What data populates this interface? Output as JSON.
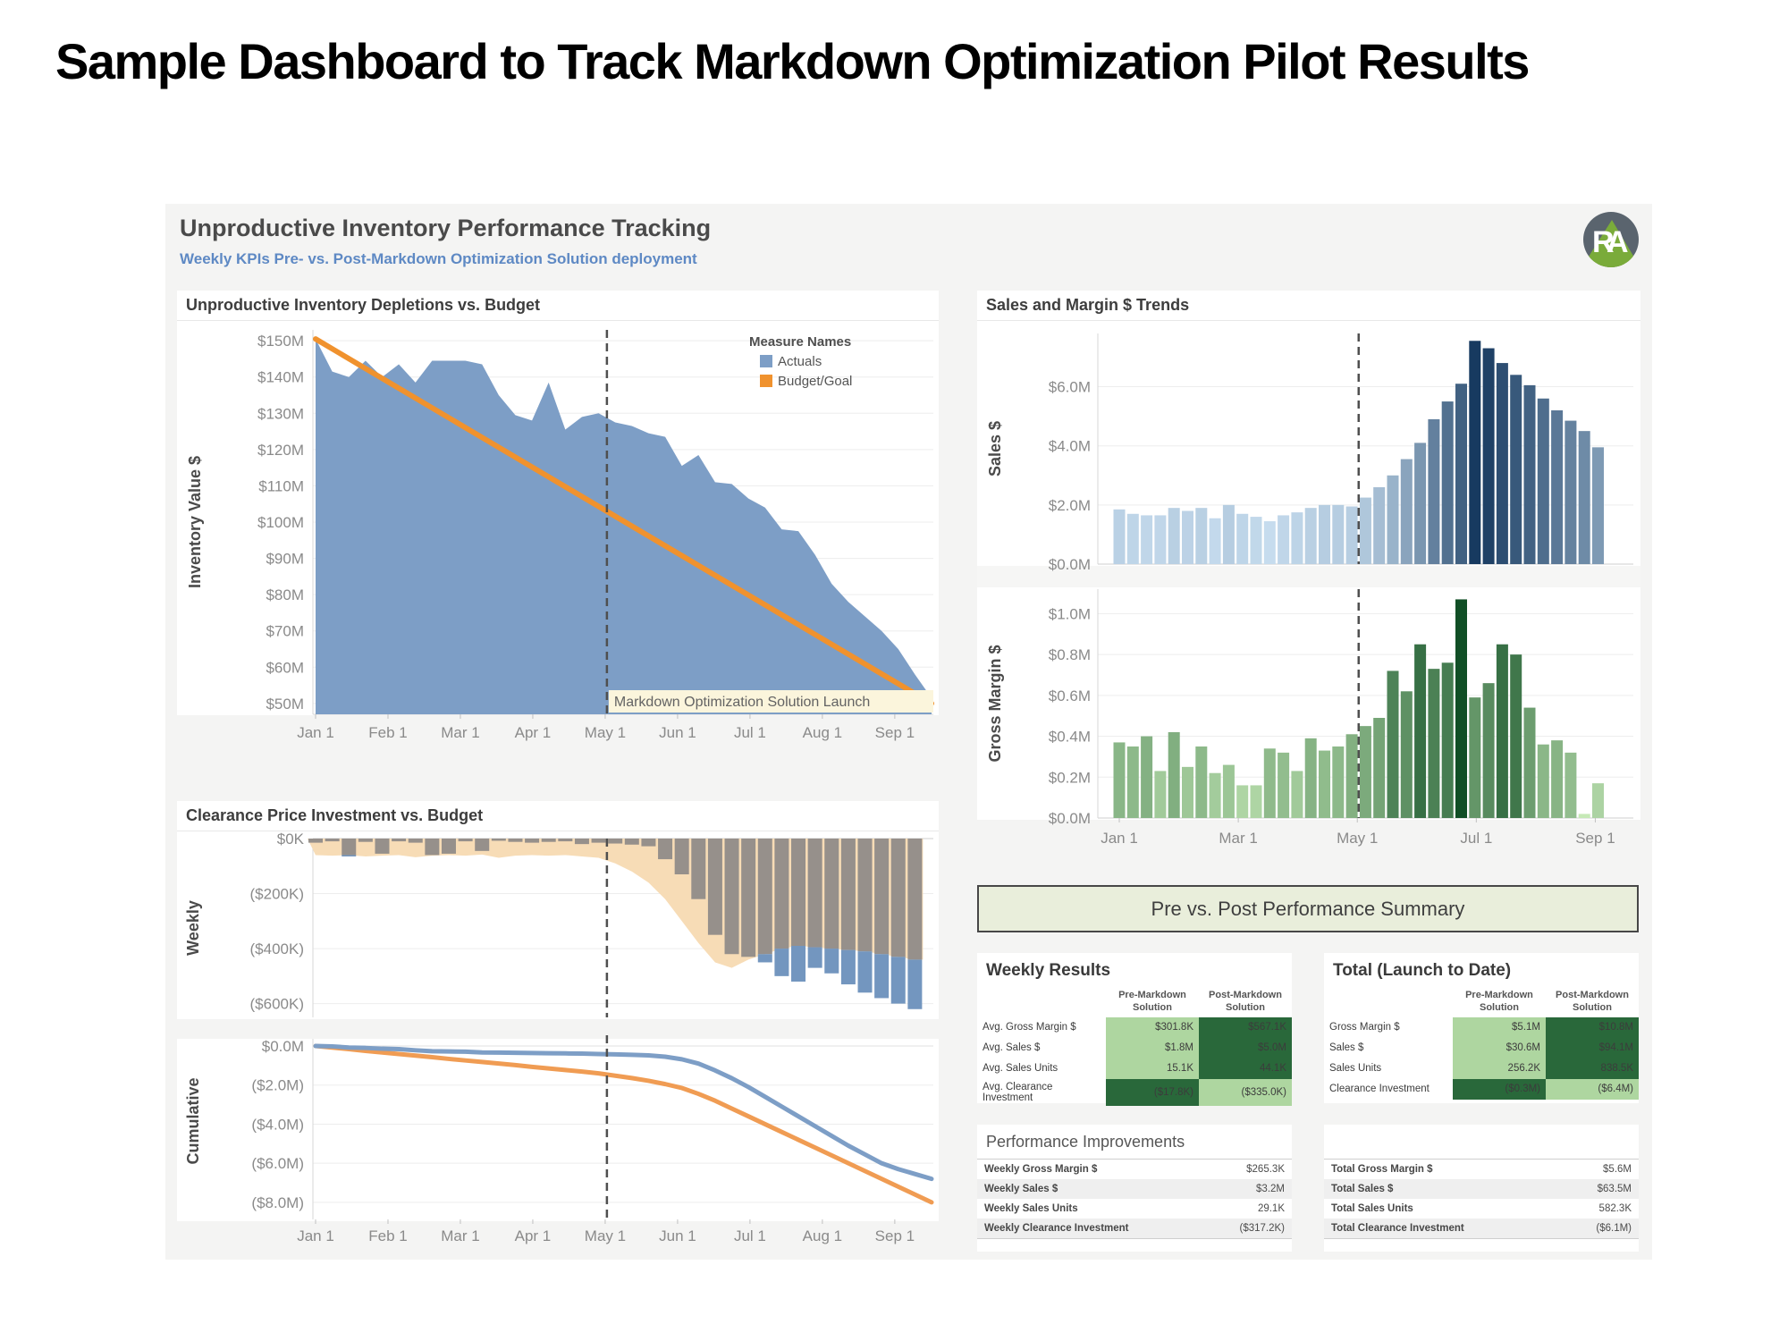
{
  "page": {
    "title": "Sample Dashboard to Track Markdown Optimization Pilot Results"
  },
  "dashboard": {
    "title": "Unproductive Inventory Performance Tracking",
    "subtitle": "Weekly KPIs Pre- vs. Post-Markdown Optimization Solution deployment",
    "logo_text": "RA"
  },
  "panels": {
    "inventory_title": "Unproductive Inventory Depletions vs. Budget",
    "clearance_title": "Clearance Price Investment vs. Budget",
    "trends_title": "Sales and Margin $ Trends"
  },
  "colors": {
    "actuals_blue": "#7d9ec6",
    "budget_orange": "#f0922e",
    "dashed_gray": "#4f4f4f",
    "sales_light": "#c7ddef",
    "sales_dark": "#16395f",
    "margin_light": "#c9ecba",
    "margin_dark": "#0c4b22",
    "budget_tan": "#f7dcb6",
    "bar_gray": "#96908b",
    "over_budget_blue": "#7396bf",
    "cell_light_green": "#aed6a0",
    "cell_dark_green": "#29683a",
    "summary_header_bg": "#e9eedb",
    "subtitle_blue": "#5e89c4",
    "launch_label_bg": "#fbf5dc",
    "logo_gray": "#5a646e",
    "logo_green": "#7aab3a"
  },
  "chart_data": [
    {
      "id": "inventory",
      "type": "area",
      "title": "Unproductive Inventory Depletions vs. Budget",
      "ylabel": "Inventory Value $",
      "ylim": [
        47,
        153
      ],
      "yticks": [
        {
          "v": 150,
          "label": "$150M"
        },
        {
          "v": 140,
          "label": "$140M"
        },
        {
          "v": 130,
          "label": "$130M"
        },
        {
          "v": 120,
          "label": "$120M"
        },
        {
          "v": 110,
          "label": "$110M"
        },
        {
          "v": 100,
          "label": "$100M"
        },
        {
          "v": 90,
          "label": "$90M"
        },
        {
          "v": 80,
          "label": "$80M"
        },
        {
          "v": 70,
          "label": "$70M"
        },
        {
          "v": 60,
          "label": "$60M"
        },
        {
          "v": 50,
          "label": "$50M"
        }
      ],
      "x_months": [
        "Jan 1",
        "Feb 1",
        "Mar 1",
        "Apr 1",
        "May 1",
        "Jun 1",
        "Jul 1",
        "Aug 1",
        "Sep 1"
      ],
      "weeks_per_month": 4.349,
      "legend_title": "Measure Names",
      "legend": [
        {
          "label": "Actuals",
          "color": "#7d9ec6"
        },
        {
          "label": "Budget/Goal",
          "color": "#f0922e"
        }
      ],
      "launch_week": 17.5,
      "launch_label": "Markdown Optimization Solution Launch",
      "series": [
        {
          "name": "Actuals",
          "color": "#7d9ec6",
          "values": [
            150.5,
            141.5,
            140,
            144.5,
            140,
            143.5,
            138.5,
            144.5,
            144.5,
            144.5,
            143.5,
            135,
            129.5,
            128,
            138.5,
            125.5,
            129,
            130,
            127.5,
            126.5,
            124.5,
            123.5,
            115.5,
            118.5,
            111,
            110.5,
            106.5,
            104,
            98,
            97.5,
            91,
            83,
            78,
            74,
            70,
            65,
            58,
            51.5
          ]
        },
        {
          "name": "Budget/Goal",
          "color": "#f0922e",
          "endpoints": [
            150.5,
            50
          ]
        }
      ]
    },
    {
      "id": "sales",
      "type": "bar",
      "ylabel": "Sales $",
      "ylim": [
        0,
        7.8
      ],
      "yticks": [
        {
          "v": 0,
          "label": "$0.0M"
        },
        {
          "v": 2,
          "label": "$2.0M"
        },
        {
          "v": 4,
          "label": "$4.0M"
        },
        {
          "v": 6,
          "label": "$6.0M"
        }
      ],
      "color_scale": [
        "#c7ddef",
        "#16395f"
      ],
      "color_domain": [
        1.4,
        7.6
      ],
      "values": [
        1.85,
        1.7,
        1.65,
        1.65,
        1.9,
        1.8,
        1.9,
        1.55,
        2.0,
        1.7,
        1.6,
        1.45,
        1.65,
        1.75,
        1.9,
        2.0,
        2.0,
        1.95,
        2.25,
        2.6,
        3.0,
        3.55,
        4.1,
        4.9,
        5.5,
        6.1,
        7.55,
        7.3,
        6.8,
        6.4,
        6.05,
        5.6,
        5.2,
        4.85,
        4.5,
        3.95
      ]
    },
    {
      "id": "margin",
      "type": "bar",
      "ylabel": "Gross Margin $",
      "ylim": [
        0,
        1.12
      ],
      "yticks": [
        {
          "v": 0,
          "label": "$0.0M"
        },
        {
          "v": 0.2,
          "label": "$0.2M"
        },
        {
          "v": 0.4,
          "label": "$0.4M"
        },
        {
          "v": 0.6,
          "label": "$0.6M"
        },
        {
          "v": 0.8,
          "label": "$0.8M"
        },
        {
          "v": 1.0,
          "label": "$1.0M"
        }
      ],
      "color_scale": [
        "#c9ecba",
        "#0c4b22"
      ],
      "color_domain": [
        0,
        1.1
      ],
      "values": [
        0.37,
        0.35,
        0.4,
        0.23,
        0.42,
        0.25,
        0.35,
        0.22,
        0.26,
        0.16,
        0.16,
        0.34,
        0.32,
        0.23,
        0.39,
        0.33,
        0.35,
        0.41,
        0.45,
        0.49,
        0.72,
        0.62,
        0.85,
        0.73,
        0.76,
        1.07,
        0.59,
        0.66,
        0.85,
        0.8,
        0.54,
        0.36,
        0.38,
        0.32,
        0.02,
        0.17
      ],
      "x_ticks": [
        {
          "label": "Jan 1",
          "week": 0
        },
        {
          "label": "Mar 1",
          "week": 8.7
        },
        {
          "label": "May 1",
          "week": 17.4
        },
        {
          "label": "Jul 1",
          "week": 26.1
        },
        {
          "label": "Sep 1",
          "week": 34.8
        }
      ],
      "launch_week": 17.5
    },
    {
      "id": "clearance_weekly",
      "type": "bar+area",
      "ylabel": "Weekly",
      "ylim": [
        -650,
        0
      ],
      "yticks": [
        {
          "v": 0,
          "label": "$0K"
        },
        {
          "v": -200,
          "label": "($200K)"
        },
        {
          "v": -400,
          "label": "($400K)"
        },
        {
          "v": -600,
          "label": "($600K)"
        }
      ],
      "bar_color": "#96908b",
      "over_budget_color": "#7396bf",
      "area_color": "#f7dcb6",
      "bars": [
        -15,
        -10,
        -65,
        -12,
        -55,
        -10,
        -15,
        -60,
        -55,
        -10,
        -45,
        -8,
        -12,
        -15,
        -12,
        -10,
        -20,
        -15,
        -18,
        -22,
        -28,
        -75,
        -130,
        -220,
        -350,
        -420,
        -430,
        -450,
        -500,
        -520,
        -470,
        -490,
        -530,
        -560,
        -580,
        -600,
        -620
      ],
      "budget_area": [
        -60,
        -62,
        -60,
        -65,
        -62,
        -60,
        -68,
        -62,
        -60,
        -62,
        -58,
        -70,
        -62,
        -60,
        -62,
        -60,
        -65,
        -70,
        -90,
        -120,
        -160,
        -220,
        -300,
        -380,
        -450,
        -470,
        -440,
        -420,
        -400,
        -390,
        -395,
        -400,
        -405,
        -410,
        -420,
        -430,
        -440
      ]
    },
    {
      "id": "clearance_cumulative",
      "type": "line",
      "ylabel": "Cumulative",
      "ylim": [
        -8.6,
        0
      ],
      "yticks": [
        {
          "v": 0,
          "label": "$0.0M"
        },
        {
          "v": -2,
          "label": "($2.0M)"
        },
        {
          "v": -4,
          "label": "($4.0M)"
        },
        {
          "v": -6,
          "label": "($6.0M)"
        },
        {
          "v": -8,
          "label": "($8.0M)"
        }
      ],
      "x_months": [
        "Jan 1",
        "Feb 1",
        "Mar 1",
        "Apr 1",
        "May 1",
        "Jun 1",
        "Jul 1",
        "Aug 1",
        "Sep 1"
      ],
      "weeks_per_month": 4.349,
      "launch_week": 17.5,
      "series": [
        {
          "name": "Actuals",
          "color": "#7d9ec6",
          "values": [
            0,
            -0.02,
            -0.08,
            -0.1,
            -0.14,
            -0.16,
            -0.22,
            -0.27,
            -0.28,
            -0.29,
            -0.33,
            -0.34,
            -0.35,
            -0.36,
            -0.37,
            -0.38,
            -0.39,
            -0.41,
            -0.43,
            -0.45,
            -0.48,
            -0.55,
            -0.68,
            -0.9,
            -1.25,
            -1.65,
            -2.1,
            -2.6,
            -3.1,
            -3.6,
            -4.1,
            -4.6,
            -5.1,
            -5.55,
            -6.0,
            -6.3,
            -6.55,
            -6.8
          ]
        },
        {
          "name": "Budget/Goal",
          "color": "#f09c53",
          "values": [
            0,
            -0.08,
            -0.16,
            -0.25,
            -0.33,
            -0.41,
            -0.49,
            -0.57,
            -0.66,
            -0.74,
            -0.82,
            -0.9,
            -0.98,
            -1.07,
            -1.15,
            -1.23,
            -1.31,
            -1.4,
            -1.52,
            -1.64,
            -1.78,
            -1.95,
            -2.15,
            -2.45,
            -2.8,
            -3.2,
            -3.6,
            -4.0,
            -4.4,
            -4.8,
            -5.2,
            -5.6,
            -6.0,
            -6.4,
            -6.8,
            -7.2,
            -7.6,
            -8.0
          ]
        }
      ]
    }
  ],
  "summary": {
    "header": "Pre vs. Post Performance Summary",
    "col_headers": [
      "Pre-Markdown Solution",
      "Post-Markdown Solution"
    ],
    "weekly": {
      "title": "Weekly Results",
      "rows": [
        {
          "label": "Avg. Gross Margin $",
          "pre": "$301.8K",
          "post": "$567.1K",
          "invert": false
        },
        {
          "label": "Avg. Sales $",
          "pre": "$1.8M",
          "post": "$5.0M",
          "invert": false
        },
        {
          "label": "Avg. Sales Units",
          "pre": "15.1K",
          "post": "44.1K",
          "invert": false
        },
        {
          "label": "Avg. Clearance Investment",
          "pre": "($17.8K)",
          "post": "($335.0K)",
          "invert": true
        }
      ]
    },
    "total": {
      "title": "Total (Launch to Date)",
      "rows": [
        {
          "label": "Gross Margin $",
          "pre": "$5.1M",
          "post": "$10.8M",
          "invert": false
        },
        {
          "label": "Sales $",
          "pre": "$30.6M",
          "post": "$94.1M",
          "invert": false
        },
        {
          "label": "Sales Units",
          "pre": "256.2K",
          "post": "838.5K",
          "invert": false
        },
        {
          "label": "Clearance Investment",
          "pre": "($0.3M)",
          "post": "($6.4M)",
          "invert": true
        }
      ]
    }
  },
  "improvements": {
    "left": {
      "title": "Performance Improvements",
      "rows": [
        {
          "label": "Weekly Gross Margin $",
          "value": "$265.3K"
        },
        {
          "label": "Weekly Sales $",
          "value": "$3.2M"
        },
        {
          "label": "Weekly Sales Units",
          "value": "29.1K"
        },
        {
          "label": "Weekly Clearance Investment",
          "value": "($317.2K)"
        }
      ]
    },
    "right": {
      "title": "",
      "rows": [
        {
          "label": "Total Gross Margin $",
          "value": "$5.6M"
        },
        {
          "label": "Total Sales $",
          "value": "$63.5M"
        },
        {
          "label": "Total Sales Units",
          "value": "582.3K"
        },
        {
          "label": "Total Clearance Investment",
          "value": "($6.1M)"
        }
      ]
    }
  }
}
